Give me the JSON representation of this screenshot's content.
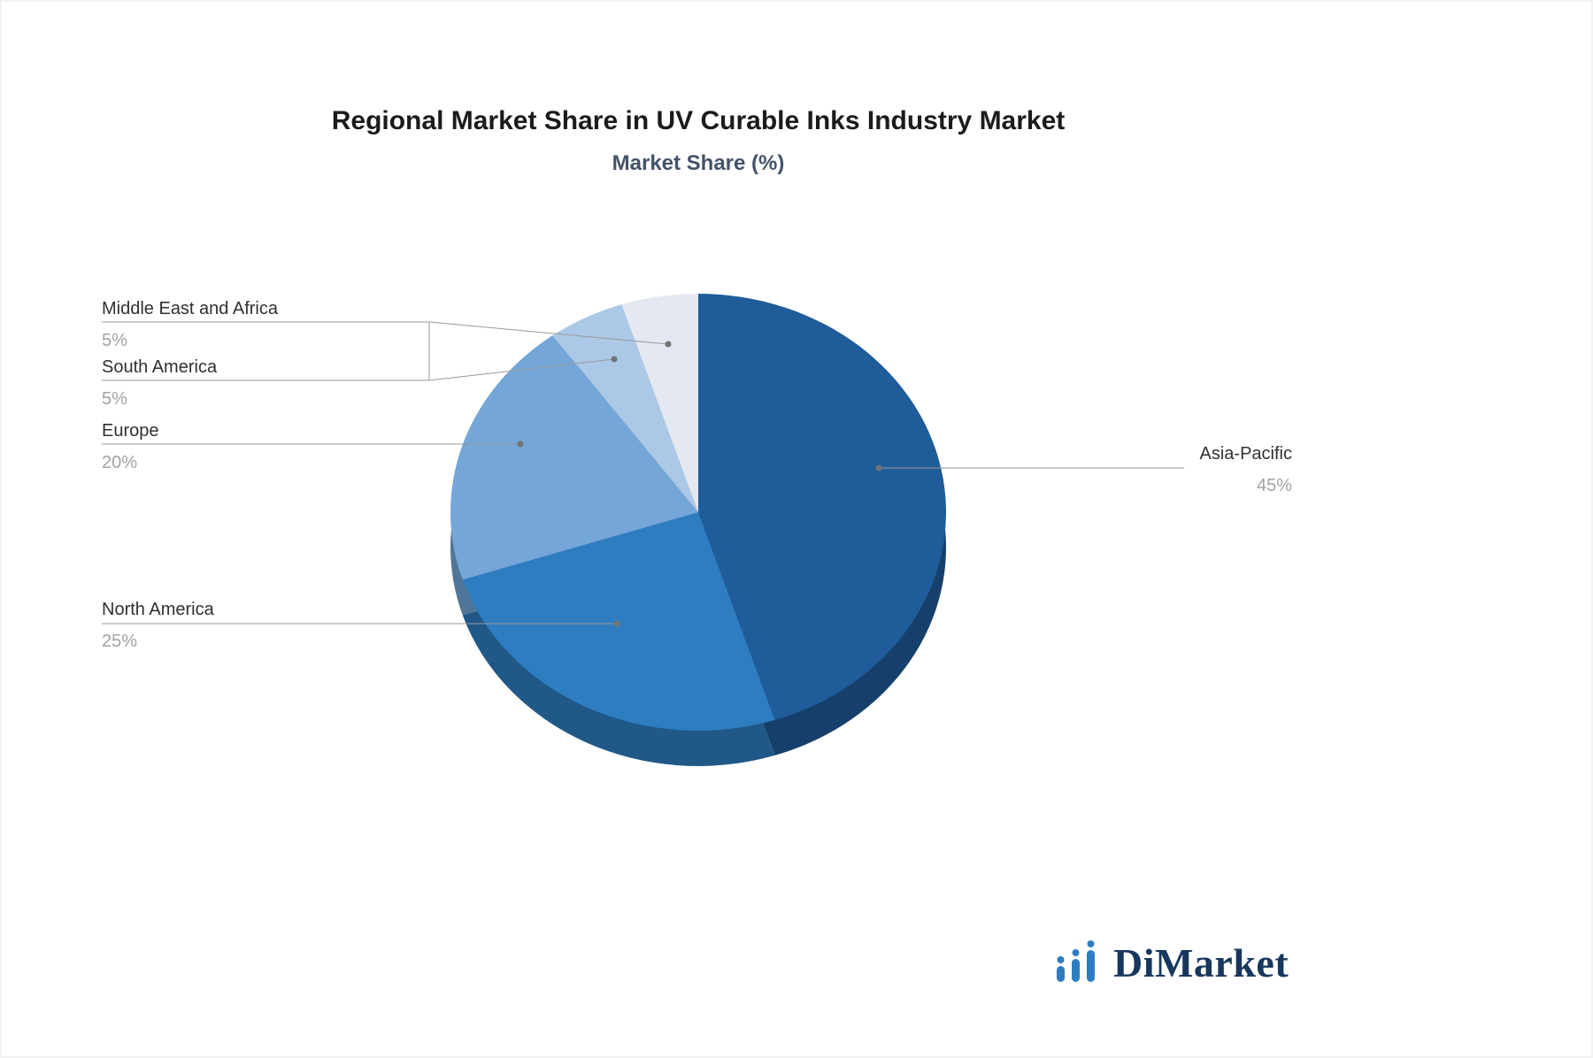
{
  "title": "Regional Market Share in UV Curable Inks Industry Market",
  "subtitle": "Market Share (%)",
  "logo": {
    "text": "DiMarket",
    "icon": "bar-chart-with-dots-icon",
    "icon_color": "#2E7DC1",
    "text_color": "#17375E"
  },
  "chart_data": {
    "type": "pie",
    "title": "Regional Market Share in UV Curable Inks Industry Market",
    "subtitle": "Market Share (%)",
    "unit": "%",
    "start_angle": "top",
    "direction": "clockwise",
    "effect": "3d-depth",
    "labels_position": "outside-callouts-with-leader-lines",
    "leader_line_color": "#999999",
    "dot_color": "#737373",
    "label_name_color": "#303030",
    "label_value_color": "#A2A2A2",
    "slices": [
      {
        "label": "Asia-Pacific",
        "value": 45,
        "display": "45%",
        "color": "#1F5C99"
      },
      {
        "label": "North America",
        "value": 25,
        "display": "25%",
        "color": "#2E7DC1"
      },
      {
        "label": "Europe",
        "value": 20,
        "display": "20%",
        "color": "#74A7D8"
      },
      {
        "label": "South America",
        "value": 5,
        "display": "5%",
        "color": "#ABC8E6"
      },
      {
        "label": "Middle East and Africa",
        "value": 5,
        "display": "5%",
        "color": "#E4E9F1"
      }
    ]
  }
}
